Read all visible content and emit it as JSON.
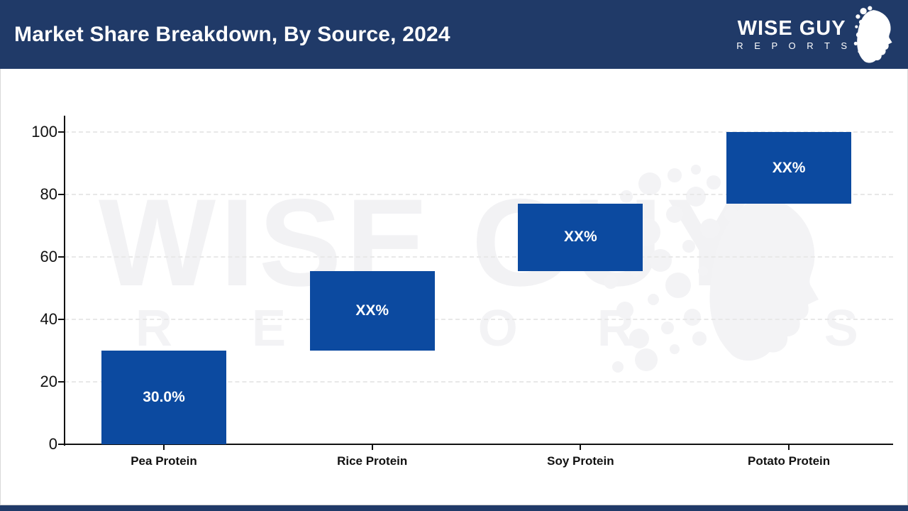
{
  "header": {
    "title": "Market Share Breakdown, By Source, 2024",
    "logo": {
      "primary": "WISE GUY",
      "secondary": "R E P O R T S"
    }
  },
  "watermark": {
    "primary": "WISE GUY",
    "secondary": "R E P O R T S"
  },
  "chart_data": {
    "type": "bar",
    "subtype": "floating-segment-waterfall",
    "title": "Market Share Breakdown, By Source, 2024",
    "categories": [
      "Pea Protein",
      "Rice Protein",
      "Soy Protein",
      "Potato Protein"
    ],
    "segments": [
      {
        "category": "Pea Protein",
        "start": 0,
        "end": 30,
        "label": "30.0%"
      },
      {
        "category": "Rice Protein",
        "start": 30,
        "end": 55.5,
        "label": "XX%"
      },
      {
        "category": "Soy Protein",
        "start": 55.5,
        "end": 77,
        "label": "XX%"
      },
      {
        "category": "Potato Protein",
        "start": 77,
        "end": 100,
        "label": "XX%"
      }
    ],
    "yticks": [
      0,
      20,
      40,
      60,
      80,
      100
    ],
    "ylim": [
      0,
      105
    ],
    "xlabel": "",
    "ylabel": "",
    "grid": "horizontal-dashed",
    "legend": "none",
    "bar_color": "#0C4AA0",
    "bar_label_color": "#FFFFFF"
  },
  "colors": {
    "header_bg": "#203A68",
    "footer_bg": "#203A68",
    "axis": "#111111",
    "gridline": "#E8E8E8",
    "watermark": "#F2F2F4"
  }
}
